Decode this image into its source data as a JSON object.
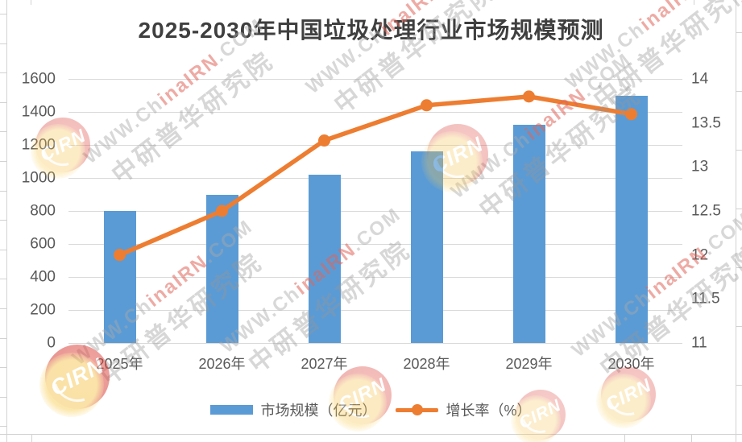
{
  "chart_data": {
    "type": "bar",
    "title": "2025-2030年中国垃圾处理行业市场规模预测",
    "categories": [
      "2025年",
      "2026年",
      "2027年",
      "2028年",
      "2029年",
      "2030年"
    ],
    "series": [
      {
        "name": "市场规模（亿元）",
        "type": "bar",
        "axis": "left",
        "color": "#5B9BD5",
        "values": [
          800,
          900,
          1020,
          1160,
          1320,
          1500
        ]
      },
      {
        "name": "增长率（%）",
        "type": "line",
        "axis": "right",
        "color": "#ED7D31",
        "values": [
          12,
          12.5,
          13.3,
          13.7,
          13.8,
          13.6
        ]
      }
    ],
    "left_axis": {
      "min": 0,
      "max": 1600,
      "step": 200,
      "tick_labels": [
        "1600",
        "1400",
        "1200",
        "1000",
        "800",
        "600",
        "400",
        "200",
        "0"
      ]
    },
    "right_axis": {
      "min": 11,
      "max": 14,
      "step": 0.5,
      "tick_labels": [
        "14",
        "13.5",
        "13",
        "12.5",
        "12",
        "11.5",
        "11"
      ]
    },
    "grid": true,
    "legend_position": "bottom"
  },
  "watermark": {
    "url_prefix": "WWW.Ch",
    "url_highlight": "inaIRN",
    "url_suffix": ".COM",
    "brand_text": "中研普华研究院",
    "logo_text": "CIRN"
  },
  "colors": {
    "bar": "#5B9BD5",
    "line": "#ED7D31",
    "axis_text": "#595959",
    "gridline": "#D9D9D9",
    "title_text": "#3F3F3F",
    "background": "#FFFFFF"
  }
}
